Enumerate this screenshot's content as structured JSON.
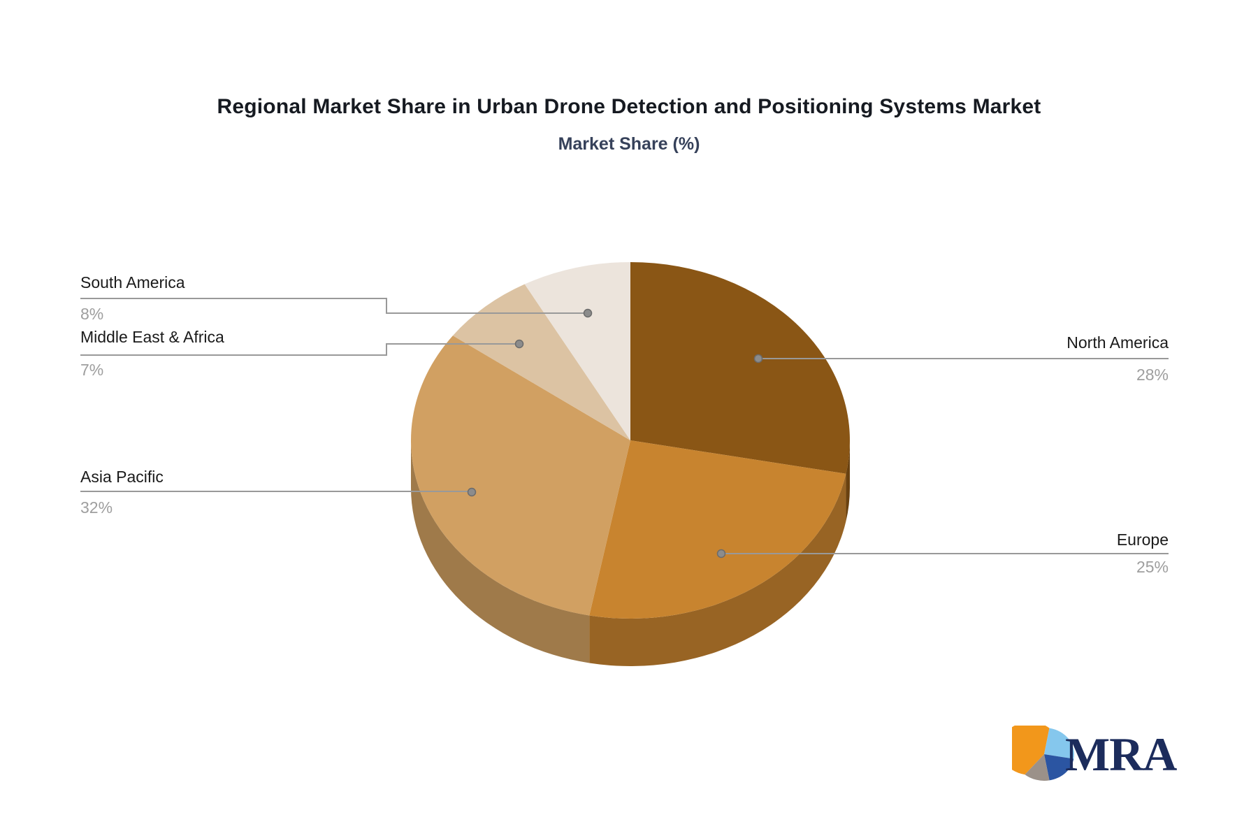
{
  "title": "Regional Market Share in Urban Drone Detection and Positioning Systems Market",
  "subtitle": "Market Share (%)",
  "labels": {
    "north_america": {
      "name": "North America",
      "pct": "28%"
    },
    "europe": {
      "name": "Europe",
      "pct": "25%"
    },
    "asia_pacific": {
      "name": "Asia Pacific",
      "pct": "32%"
    },
    "middle_east_africa": {
      "name": "Middle East & Africa",
      "pct": "7%"
    },
    "south_america": {
      "name": "South America",
      "pct": "8%"
    }
  },
  "logo": {
    "text": "MRA"
  },
  "colors": {
    "leader_line": "#999999",
    "leader_dot": "#8c8c8c",
    "title": "#161a21",
    "subtitle": "#36415a",
    "pct_text": "#9e9e9e"
  },
  "chart_data": {
    "type": "pie",
    "style": "3d",
    "title": "Regional Market Share in Urban Drone Detection and Positioning Systems Market",
    "subtitle": "Market Share (%)",
    "unit": "%",
    "start_angle_deg": 0,
    "direction": "clockwise",
    "legend_position": "none",
    "series": [
      {
        "label": "North America",
        "value": 28,
        "color": "#8a5615"
      },
      {
        "label": "Europe",
        "value": 25,
        "color": "#c8842f"
      },
      {
        "label": "Asia Pacific",
        "value": 32,
        "color": "#d1a062"
      },
      {
        "label": "Middle East & Africa",
        "value": 7,
        "color": "#dcc3a3"
      },
      {
        "label": "South America",
        "value": 8,
        "color": "#ece4dc"
      }
    ]
  }
}
